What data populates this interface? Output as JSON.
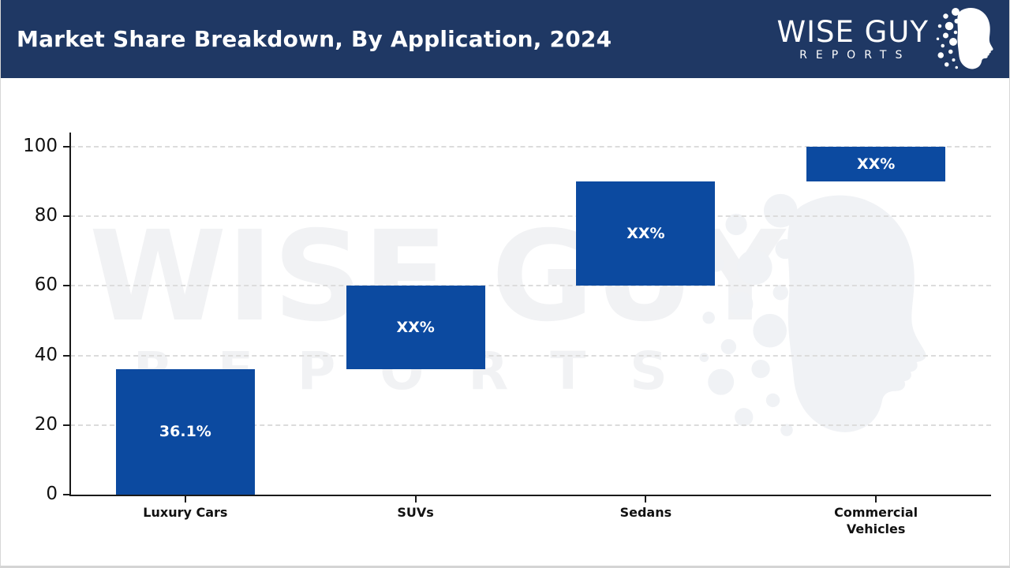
{
  "header": {
    "title": "Market Share Breakdown, By Application, 2024",
    "logo": {
      "name_top": "WISE GUY",
      "name_bottom": "REPORTS"
    }
  },
  "watermark": {
    "line1": "WISE GUY",
    "line2": "REPORTS"
  },
  "colors": {
    "header_bg": "#1f3864",
    "bar": "#0c4aa0",
    "bar_label": "#ffffff",
    "gridline": "#dcdcdc",
    "axis": "#1a1a1a",
    "watermark": "#f1f2f4"
  },
  "chart_data": {
    "type": "bar",
    "subtype": "waterfall-floating-bars",
    "title": "Market Share Breakdown, By Application, 2024",
    "categories": [
      "Luxury Cars",
      "SUVs",
      "Sedans",
      "Commercial Vehicles"
    ],
    "segments": [
      {
        "category": "Luxury Cars",
        "start": 0,
        "end": 36.1,
        "label": "36.1%"
      },
      {
        "category": "SUVs",
        "start": 36.1,
        "end": 60.1,
        "label": "XX%"
      },
      {
        "category": "Sedans",
        "start": 60.1,
        "end": 90.0,
        "label": "XX%"
      },
      {
        "category": "Commercial Vehicles",
        "start": 90.0,
        "end": 100.0,
        "label": "XX%"
      }
    ],
    "yticks": [
      0,
      20,
      40,
      60,
      80,
      100
    ],
    "ylim": [
      0,
      104
    ],
    "xlabel": "",
    "ylabel": "",
    "grid": "horizontal-dashed",
    "legend": "none"
  }
}
